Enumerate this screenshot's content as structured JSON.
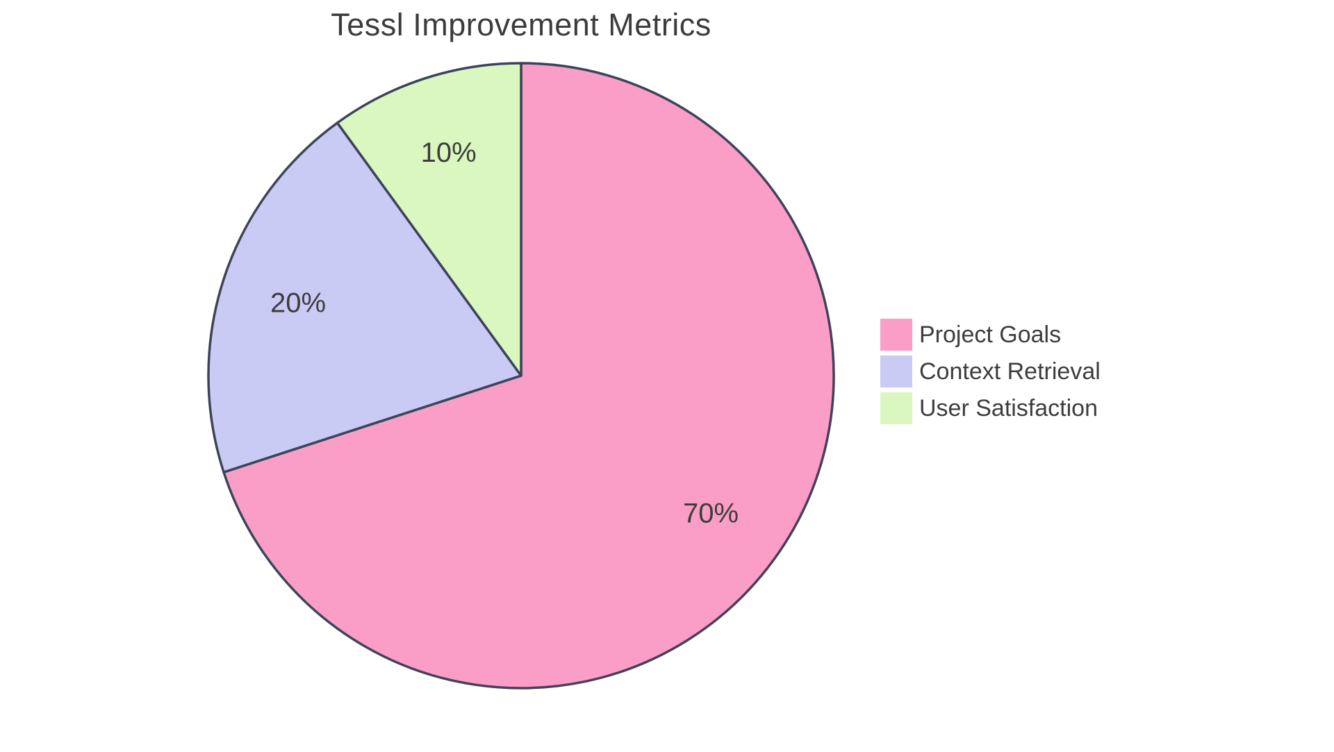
{
  "chart_data": {
    "type": "pie",
    "title": "Tessl Improvement Metrics",
    "slices": [
      {
        "label": "Project Goals",
        "value": 70,
        "display": "70%",
        "color": "#FA9EC8"
      },
      {
        "label": "Context Retrieval",
        "value": 20,
        "display": "20%",
        "color": "#CACBF5"
      },
      {
        "label": "User Satisfaction",
        "value": 10,
        "display": "10%",
        "color": "#D9F7BE"
      }
    ],
    "start_angle": "12-oclock",
    "direction": "clockwise",
    "stroke_color": "#3D4359",
    "label_color": "#3D3D3D",
    "title_color": "#3C3C3C",
    "background": "#FFFFFF",
    "legend_position": "right"
  }
}
